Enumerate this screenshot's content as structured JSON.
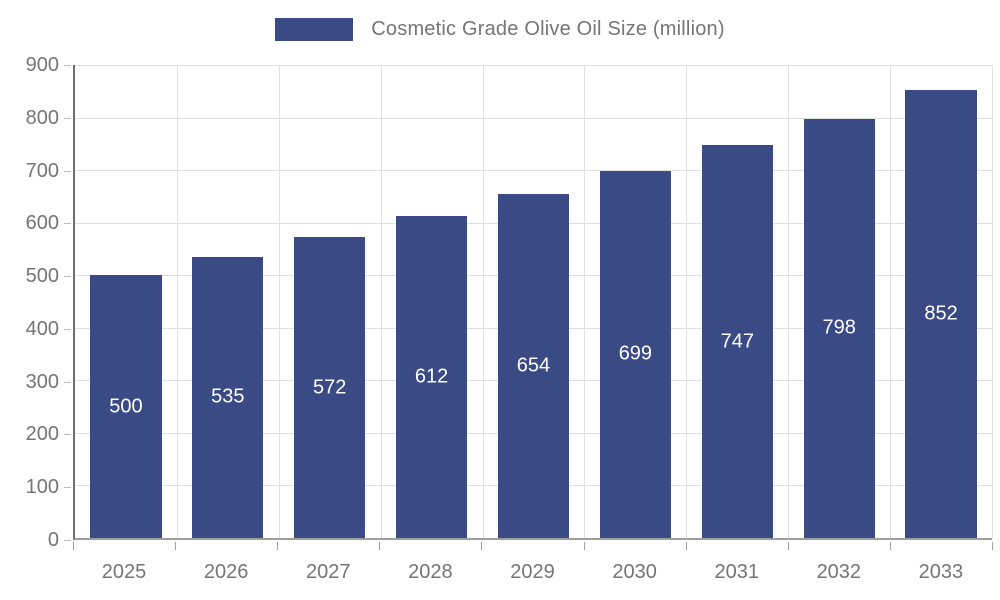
{
  "legend": {
    "label": "Cosmetic Grade Olive Oil Size (million)"
  },
  "chart_data": {
    "type": "bar",
    "title": "Cosmetic Grade Olive Oil Size (million)",
    "categories": [
      "2025",
      "2026",
      "2027",
      "2028",
      "2029",
      "2030",
      "2031",
      "2032",
      "2033"
    ],
    "values": [
      500,
      535,
      572,
      612,
      654,
      699,
      747,
      798,
      852
    ],
    "xlabel": "",
    "ylabel": "",
    "ylim": [
      0,
      900
    ],
    "ytick_step": 100,
    "yticks": [
      0,
      100,
      200,
      300,
      400,
      500,
      600,
      700,
      800,
      900
    ],
    "grid": true,
    "legend_position": "top-center",
    "bar_labels_inside": true
  },
  "colors": {
    "bar": "#3a4a85",
    "bar_label": "#ffffff",
    "axis_text": "#757575",
    "gridline": "#e0e0e0",
    "y_axis_line": "#6e6e6e",
    "x_axis_line": "#9e9e9e",
    "background": "#ffffff"
  }
}
